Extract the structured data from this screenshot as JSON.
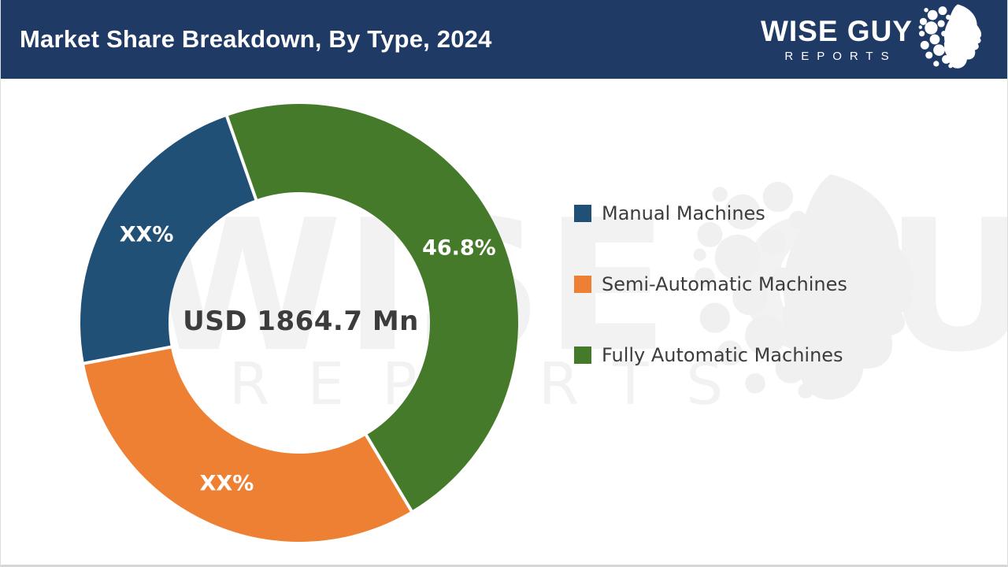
{
  "header": {
    "title": "Market Share Breakdown, By Type, 2024",
    "logo_line1": "WISE GUY",
    "logo_line2": "REPORTS"
  },
  "watermark": {
    "line1": "WISE GUY",
    "line2": "REPORTS"
  },
  "colors": {
    "header_bg": "#203A66",
    "manual_blue": "#215077",
    "semi_auto_orange": "#ED8032",
    "fully_auto_green": "#467A2B",
    "text_dark": "#3C3C3C",
    "watermark_gray": "#F2F2F2"
  },
  "chart_data": {
    "type": "pie",
    "subtype": "donut",
    "title": "Market Share Breakdown, By Type, 2024",
    "center_label": "USD 1864.7 Mn",
    "start_angle_deg": -19.3,
    "legend_position": "right",
    "segments": [
      {
        "name": "Fully Automatic Machines",
        "label": "46.8%",
        "arc_percent": 46.8,
        "color": "#467A2B"
      },
      {
        "name": "Semi-Automatic Machines",
        "label": "XX%",
        "arc_percent": 30.6,
        "color": "#ED8032"
      },
      {
        "name": "Manual Machines",
        "label": "XX%",
        "arc_percent": 22.6,
        "color": "#215077"
      }
    ],
    "legend": [
      {
        "label": "Manual Machines",
        "color": "#215077"
      },
      {
        "label": "Semi-Automatic Machines",
        "color": "#ED8032"
      },
      {
        "label": "Fully Automatic Machines",
        "color": "#467A2B"
      }
    ]
  }
}
